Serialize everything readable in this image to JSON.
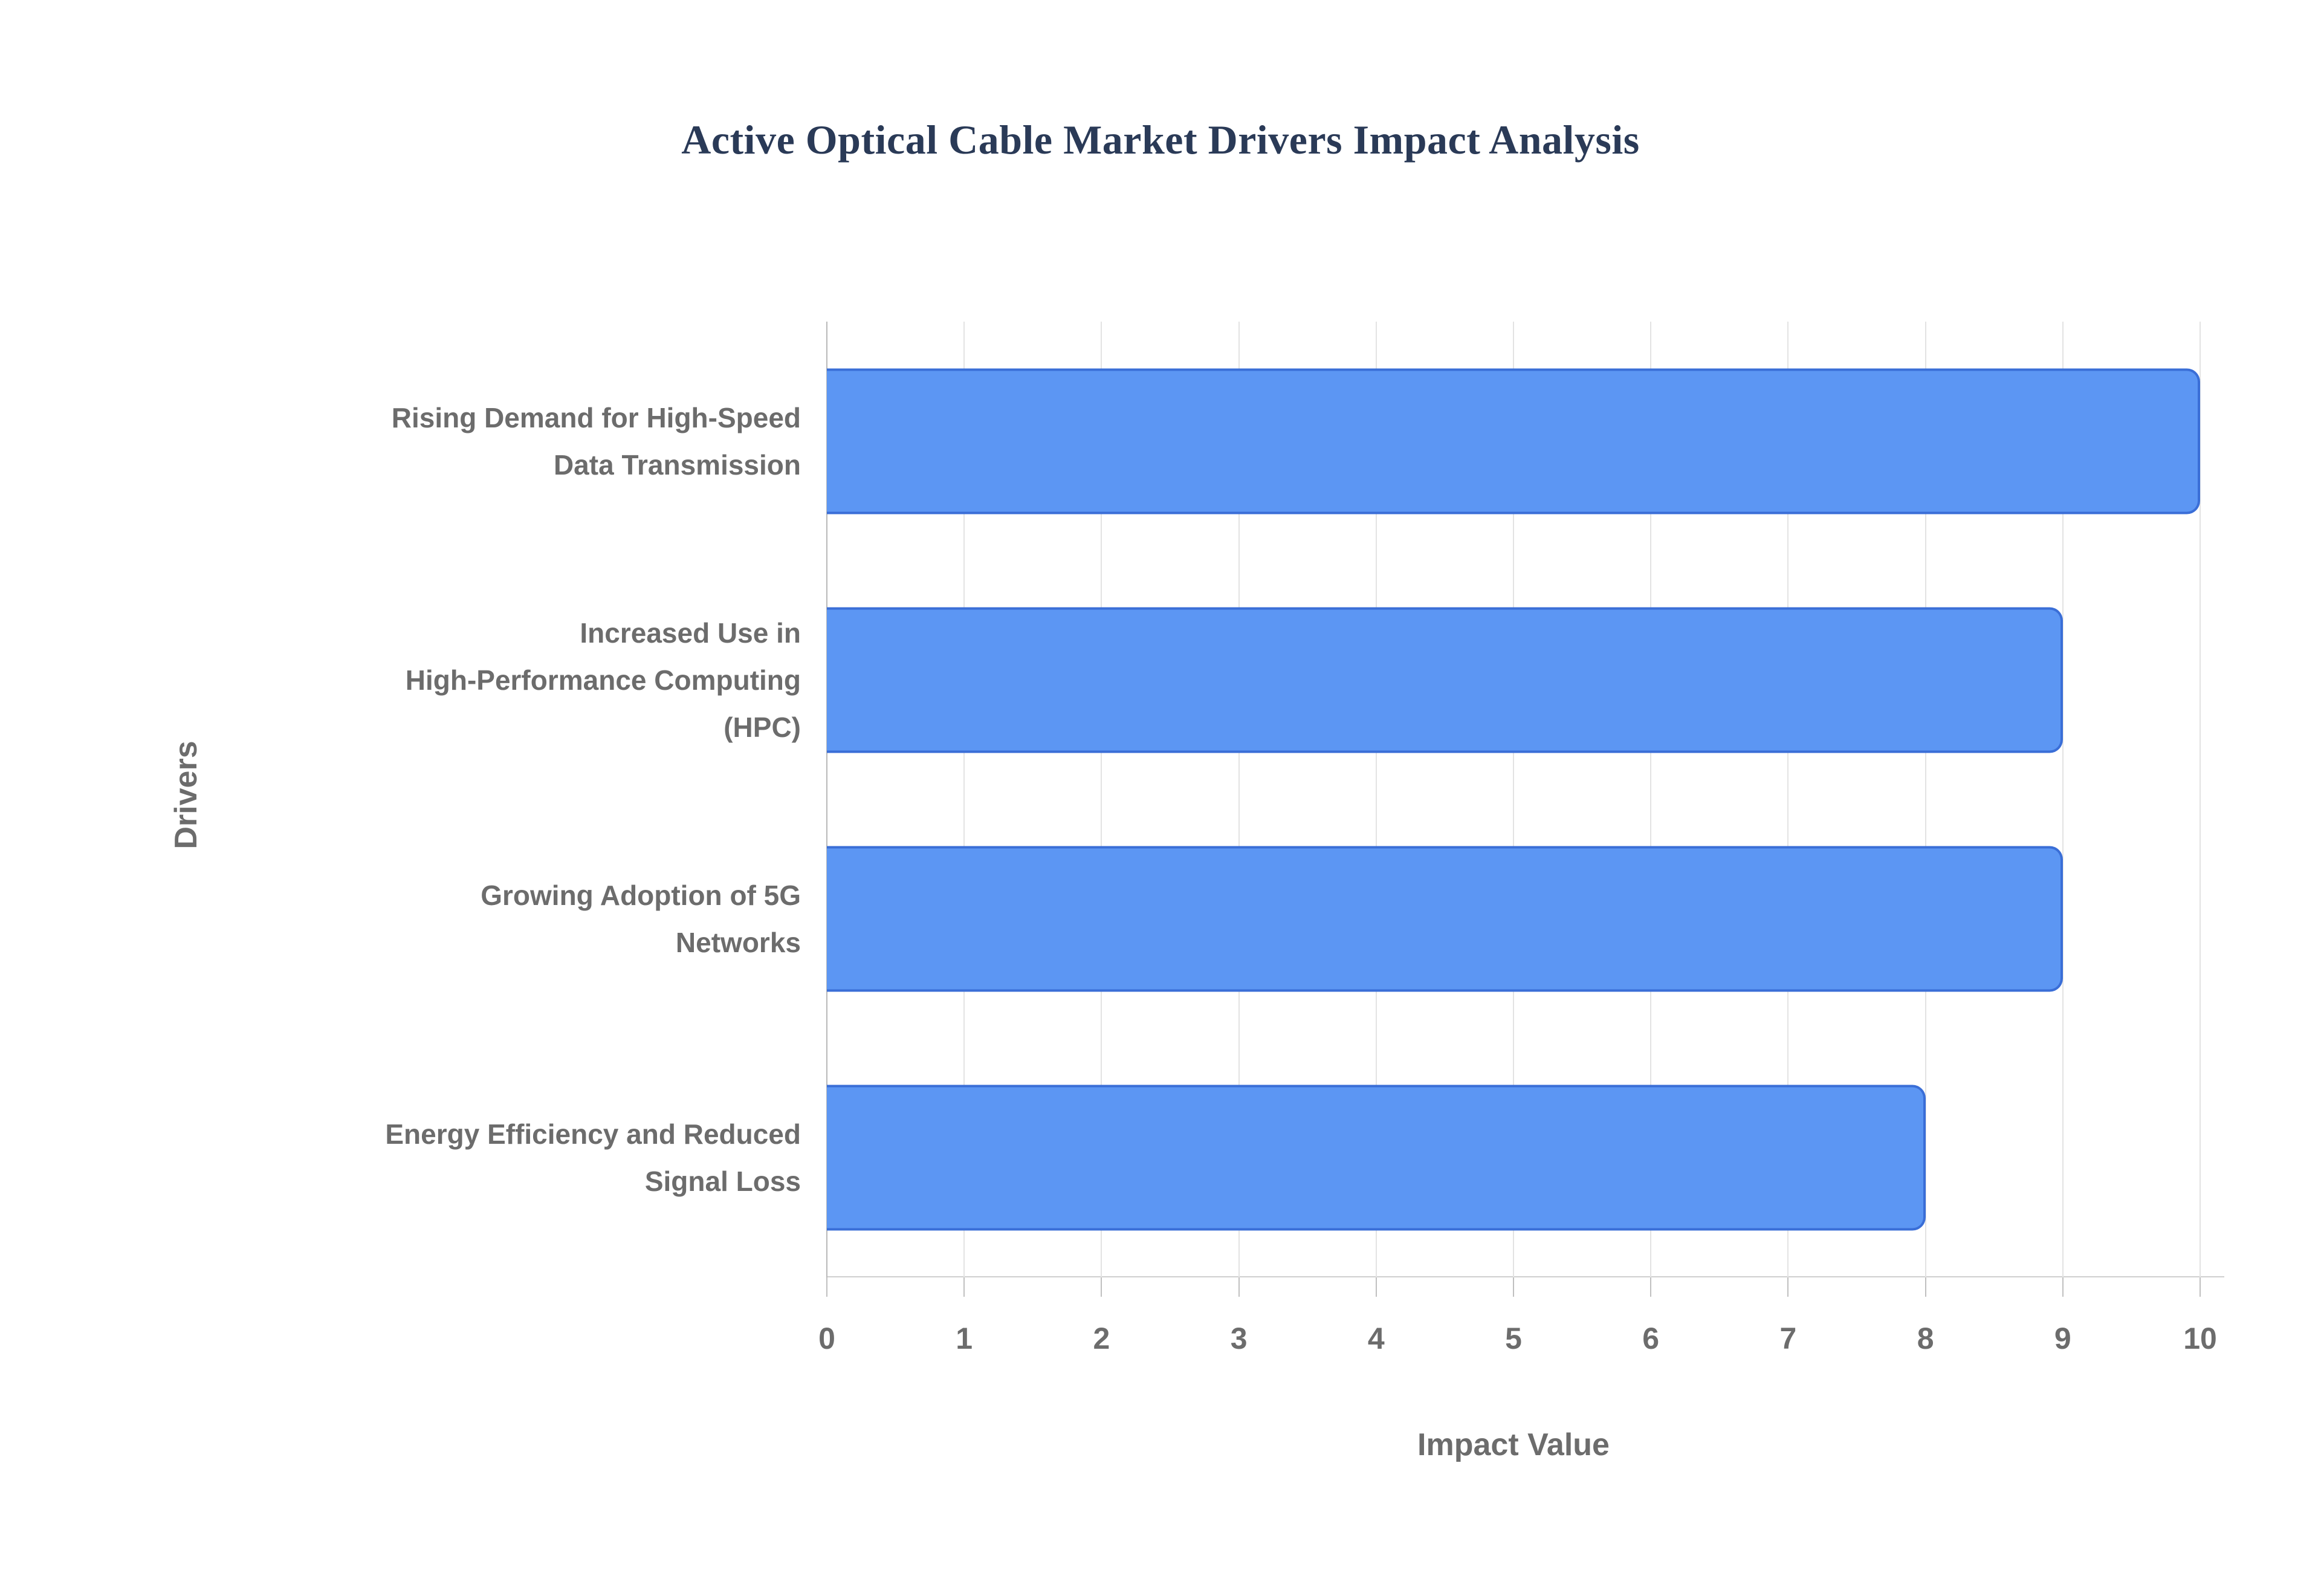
{
  "title": "Active Optical Cable Market Drivers Impact Analysis",
  "chart_data": {
    "type": "bar",
    "orientation": "horizontal",
    "title": "Active Optical Cable Market Drivers Impact Analysis",
    "categories": [
      "Rising Demand for High-Speed\nData Transmission",
      "Increased Use in\nHigh-Performance Computing\n(HPC)",
      "Growing Adoption of 5G\nNetworks",
      "Energy Efficiency and Reduced\nSignal Loss"
    ],
    "values": [
      10,
      9,
      9,
      8
    ],
    "xlabel": "Impact Value",
    "ylabel": "Drivers",
    "xlim": [
      0,
      10
    ],
    "xticks": [
      0,
      1,
      2,
      3,
      4,
      5,
      6,
      7,
      8,
      9,
      10
    ],
    "grid": true,
    "legend": "none",
    "colors": {
      "bar_fill": "#5c96f3",
      "bar_border": "#3a6ed7",
      "title_text": "#2a3a57",
      "label_text": "#6c6c6c",
      "gridline": "#e3e3e3",
      "axis_line": "#b9b9b9"
    }
  }
}
